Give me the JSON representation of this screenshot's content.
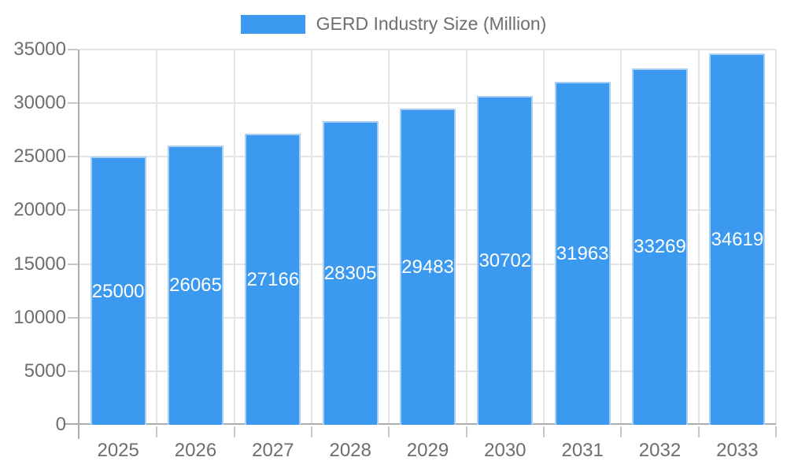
{
  "chart_data": {
    "type": "bar",
    "title": "",
    "legend": "GERD Industry Size (Million)",
    "legend_position": "top-center",
    "categories": [
      "2025",
      "2026",
      "2027",
      "2028",
      "2029",
      "2030",
      "2031",
      "2032",
      "2033"
    ],
    "values": [
      25000,
      26065,
      27166,
      28305,
      29483,
      30702,
      31963,
      33269,
      34619
    ],
    "value_labels_position": "inside-center",
    "xlabel": "",
    "ylabel": "",
    "ylim": [
      0,
      35000
    ],
    "ytick_step": 5000,
    "ytick_labels": [
      "0",
      "5000",
      "10000",
      "15000",
      "20000",
      "25000",
      "30000",
      "35000"
    ],
    "grid": "horizontal and vertical light gray gridlines",
    "colors": {
      "bar": "#3B99EF",
      "bar_border": "#A9CFF4",
      "grid": "#E4E4E4",
      "axis": "#ADADAD",
      "tick": "#C6C6C6",
      "label_text": "#6E6E6E",
      "value_text": "#FFFFFF",
      "background": "#FFFFFF"
    }
  }
}
